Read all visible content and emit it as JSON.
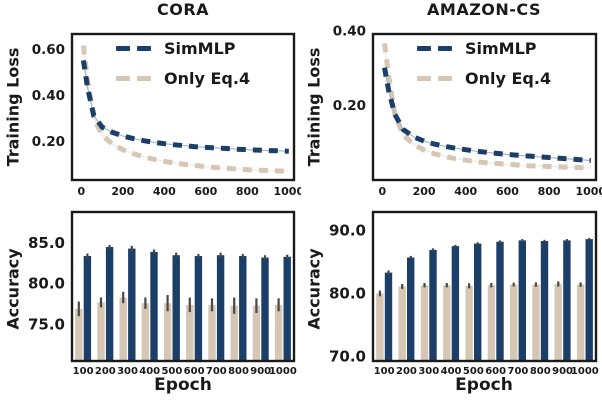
{
  "figure": {
    "background": "#ffffff",
    "colors": {
      "simmlp": "#1b3f69",
      "only_eq4": "#d6c6b4",
      "frame": "#1a1a1a",
      "error_bar": "#4a4a44",
      "text": "#1a1a1a"
    }
  },
  "chart_data": [
    {
      "id": "cora-training-loss",
      "type": "line",
      "title": "CORA",
      "ylabel": "Training Loss",
      "xlabel": "",
      "legend_position": "upper center inside",
      "grid": false,
      "xlim": [
        -45,
        1025
      ],
      "ylim": [
        0.03,
        0.665
      ],
      "xticks": [
        0,
        200,
        400,
        600,
        800,
        1000
      ],
      "xtick_labels": [
        "0",
        "200",
        "400",
        "600",
        "800",
        "1000"
      ],
      "yticks": [
        0.2,
        0.4,
        0.6
      ],
      "ytick_labels": [
        "0.20",
        "0.40",
        "0.60"
      ],
      "x": [
        10,
        30,
        60,
        100,
        150,
        200,
        250,
        300,
        350,
        400,
        450,
        500,
        550,
        600,
        650,
        700,
        750,
        800,
        850,
        900,
        950,
        1000
      ],
      "series": [
        {
          "name": "SimMLP",
          "color": "#1b3f69",
          "linestyle": "dashed",
          "values": [
            0.55,
            0.43,
            0.31,
            0.26,
            0.237,
            0.222,
            0.21,
            0.201,
            0.194,
            0.188,
            0.183,
            0.179,
            0.175,
            0.172,
            0.169,
            0.167,
            0.164,
            0.162,
            0.16,
            0.158,
            0.157,
            0.155
          ]
        },
        {
          "name": "Only Eq.4",
          "color": "#d6c6b4",
          "linestyle": "dashed",
          "values": [
            0.615,
            0.46,
            0.3,
            0.225,
            0.186,
            0.162,
            0.145,
            0.131,
            0.12,
            0.111,
            0.104,
            0.098,
            0.093,
            0.088,
            0.084,
            0.081,
            0.078,
            0.075,
            0.073,
            0.071,
            0.069,
            0.068
          ]
        }
      ]
    },
    {
      "id": "amazon-cs-training-loss",
      "type": "line",
      "title": "AMAZON-CS",
      "ylabel": "Training Loss",
      "xlabel": "",
      "legend_position": "upper center inside",
      "grid": false,
      "xlim": [
        -45,
        1025
      ],
      "ylim": [
        0.0,
        0.39
      ],
      "xticks": [
        0,
        200,
        400,
        600,
        800,
        1000
      ],
      "xtick_labels": [
        "0",
        "200",
        "400",
        "600",
        "800",
        "1000"
      ],
      "yticks": [
        0.2,
        0.4
      ],
      "ytick_labels": [
        "0.20",
        "0.40"
      ],
      "x": [
        10,
        30,
        60,
        100,
        150,
        200,
        250,
        300,
        350,
        400,
        450,
        500,
        550,
        600,
        650,
        700,
        750,
        800,
        850,
        900,
        950,
        1000
      ],
      "series": [
        {
          "name": "SimMLP",
          "color": "#1b3f69",
          "linestyle": "dashed",
          "values": [
            0.3,
            0.24,
            0.175,
            0.135,
            0.115,
            0.104,
            0.096,
            0.09,
            0.085,
            0.081,
            0.077,
            0.074,
            0.071,
            0.068,
            0.066,
            0.064,
            0.062,
            0.06,
            0.058,
            0.056,
            0.054,
            0.052
          ]
        },
        {
          "name": "Only Eq.4",
          "color": "#d6c6b4",
          "linestyle": "dashed",
          "values": [
            0.365,
            0.28,
            0.175,
            0.12,
            0.095,
            0.08,
            0.07,
            0.063,
            0.057,
            0.053,
            0.049,
            0.046,
            0.044,
            0.042,
            0.04,
            0.038,
            0.037,
            0.036,
            0.035,
            0.034,
            0.033,
            0.032
          ]
        }
      ]
    },
    {
      "id": "cora-accuracy",
      "type": "bar",
      "title": "",
      "ylabel": "Accuracy",
      "xlabel": "Epoch",
      "grid": false,
      "categories": [
        "100",
        "200",
        "300",
        "400",
        "500",
        "600",
        "700",
        "800",
        "900",
        "1000"
      ],
      "ylim": [
        70.5,
        88.8
      ],
      "yticks": [
        75.0,
        80.0,
        85.0
      ],
      "ytick_labels": [
        "75.0",
        "80.0",
        "85.0"
      ],
      "series": [
        {
          "name": "Only Eq.4",
          "color": "#d6c6b4",
          "values": [
            76.9,
            77.7,
            78.3,
            77.6,
            77.6,
            77.4,
            77.4,
            77.3,
            77.3,
            77.4
          ],
          "errors": [
            0.9,
            0.6,
            0.7,
            0.7,
            1.0,
            0.9,
            0.8,
            1.0,
            0.9,
            0.8
          ]
        },
        {
          "name": "SimMLP",
          "color": "#1b3f69",
          "values": [
            83.4,
            84.5,
            84.3,
            83.9,
            83.5,
            83.4,
            83.5,
            83.4,
            83.2,
            83.3
          ],
          "errors": [
            0.3,
            0.25,
            0.35,
            0.3,
            0.3,
            0.25,
            0.3,
            0.25,
            0.3,
            0.25
          ]
        }
      ]
    },
    {
      "id": "amazon-cs-accuracy",
      "type": "bar",
      "title": "",
      "ylabel": "Accuracy",
      "xlabel": "Epoch",
      "grid": false,
      "categories": [
        "100",
        "200",
        "300",
        "400",
        "500",
        "600",
        "700",
        "800",
        "900",
        "1000"
      ],
      "ylim": [
        69.3,
        92.9
      ],
      "yticks": [
        70.0,
        80.0,
        90.0
      ],
      "ytick_labels": [
        "70.0",
        "80.0",
        "90.0"
      ],
      "series": [
        {
          "name": "Only Eq.4",
          "color": "#d6c6b4",
          "values": [
            80.0,
            81.1,
            81.3,
            81.3,
            81.2,
            81.3,
            81.4,
            81.4,
            81.5,
            81.4
          ],
          "errors": [
            0.45,
            0.4,
            0.35,
            0.35,
            0.4,
            0.35,
            0.3,
            0.35,
            0.4,
            0.35
          ]
        },
        {
          "name": "SimMLP",
          "color": "#1b3f69",
          "values": [
            83.3,
            85.7,
            86.9,
            87.5,
            87.9,
            88.2,
            88.4,
            88.3,
            88.4,
            88.6
          ],
          "errors": [
            0.35,
            0.25,
            0.25,
            0.2,
            0.2,
            0.2,
            0.2,
            0.2,
            0.2,
            0.2
          ]
        }
      ]
    }
  ]
}
